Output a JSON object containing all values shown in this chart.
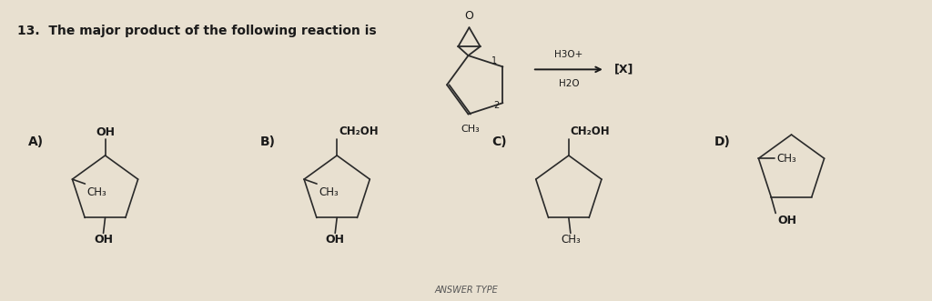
{
  "bg_color": "#c8b8a2",
  "page_color": "#e8e0d0",
  "text_color": "#1a1a1a",
  "fig_width": 10.24,
  "fig_height": 3.31,
  "dpi": 100,
  "question": "13.  The major product of the following reaction is",
  "arrow_above": "H3O+",
  "arrow_below": "H2O",
  "arrow_product": "[X]",
  "opt_A": "A)",
  "opt_B": "B)",
  "opt_C": "C)",
  "opt_D": "D)",
  "label_OH": "OH",
  "label_CH2OH": "CH₂OH",
  "label_CH3": "CH₃"
}
